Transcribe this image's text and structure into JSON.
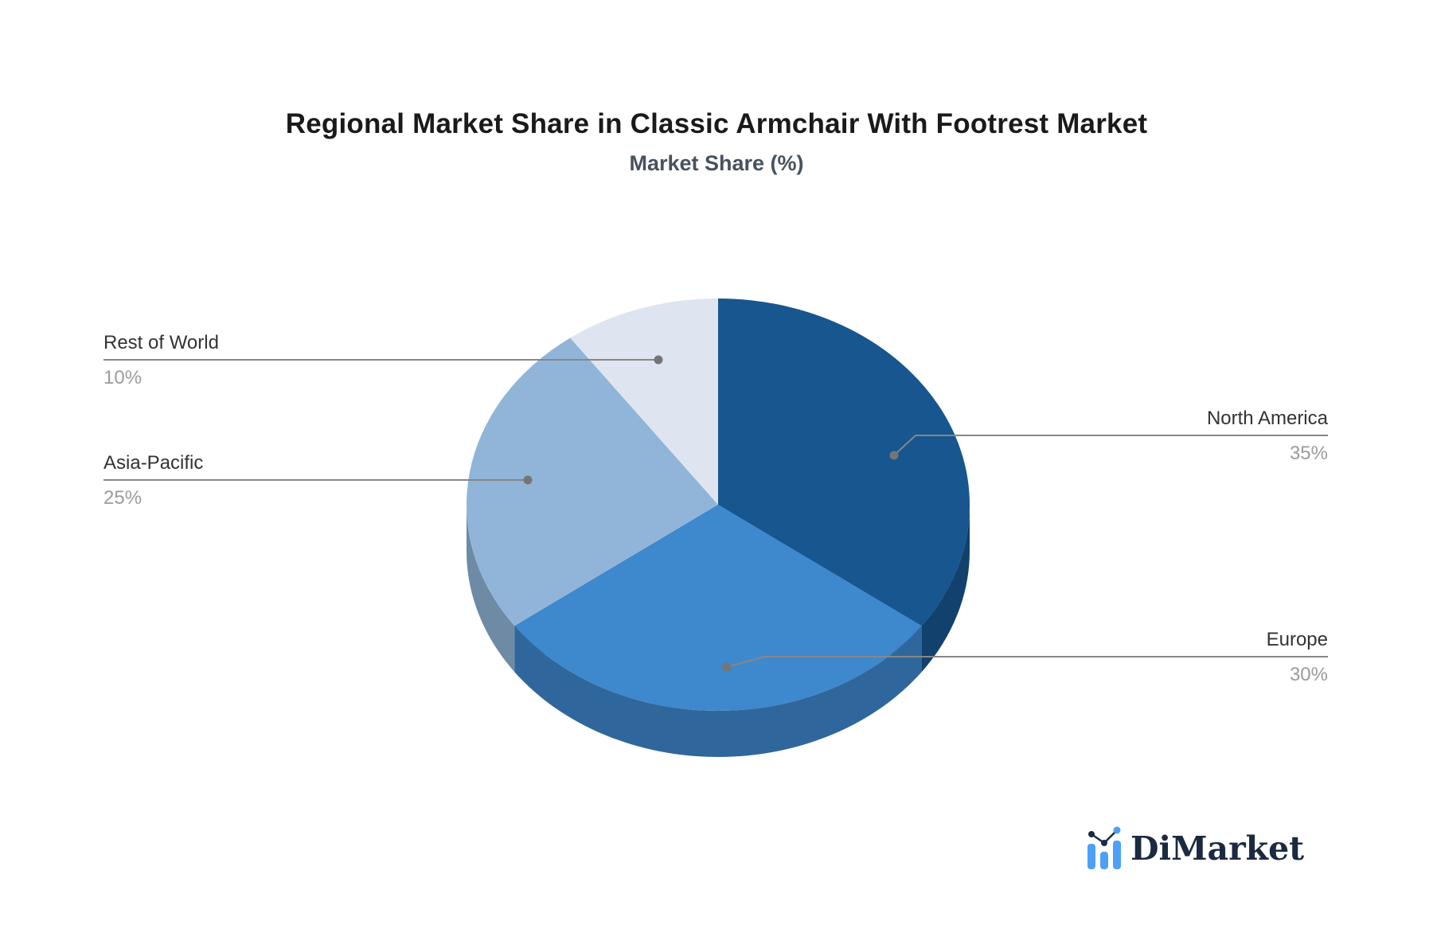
{
  "header": {
    "title": "Regional Market Share in Classic Armchair With Footrest Market",
    "subtitle": "Market Share (%)"
  },
  "chart_data": {
    "type": "pie",
    "style": "3d",
    "title": "Regional Market Share in Classic Armchair With Footrest Market",
    "subtitle": "Market Share (%)",
    "unit": "%",
    "start_angle_deg": 0,
    "direction": "clockwise",
    "legend_position": "callout-labels",
    "segments": [
      {
        "label": "North America",
        "value": 35,
        "display": "35%",
        "color": "#17568E"
      },
      {
        "label": "Europe",
        "value": 30,
        "display": "30%",
        "color": "#3E88CD"
      },
      {
        "label": "Asia-Pacific",
        "value": 25,
        "display": "25%",
        "color": "#91B5D9"
      },
      {
        "label": "Rest of World",
        "value": 10,
        "display": "10%",
        "color": "#DEE5F0"
      }
    ]
  },
  "colors": {
    "leader_line": "#878787",
    "leader_dot": "#757575",
    "label_text": "#333333",
    "percent_text": "#9b9b9b",
    "logo_navy": "#1B2A41",
    "logo_blue": "#4DA0F5"
  },
  "logo": {
    "text": "DiMarket",
    "icon": "bar-chart-logo-icon"
  }
}
